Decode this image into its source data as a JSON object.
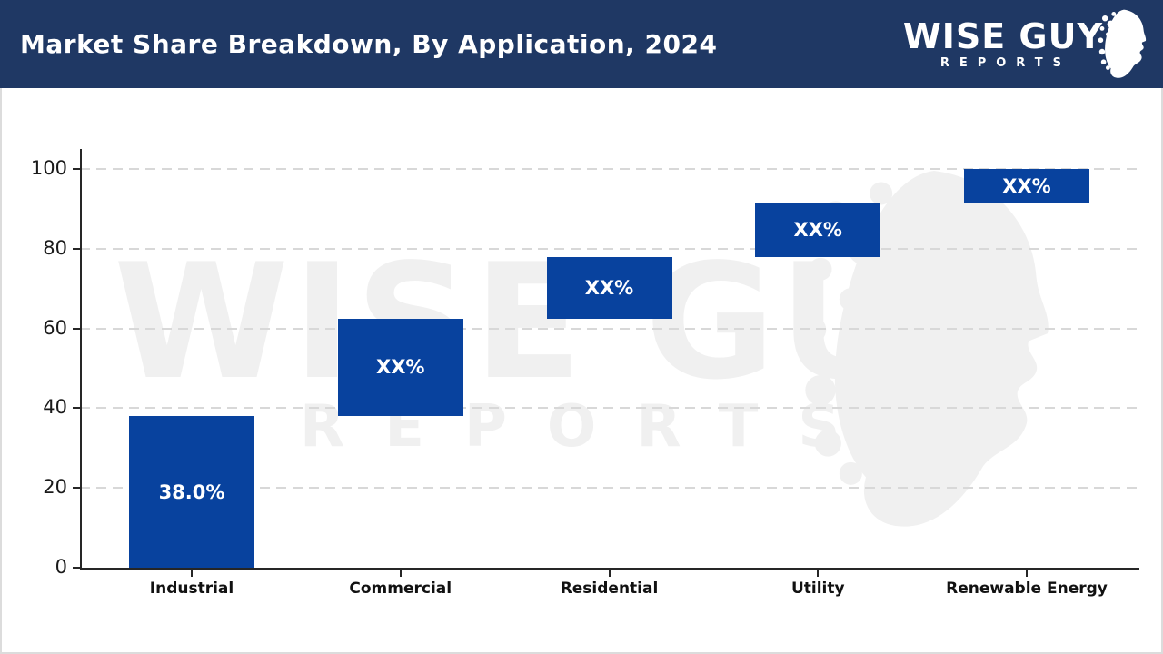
{
  "header": {
    "title": "Market Share Breakdown, By Application, 2024",
    "bg_color": "#1f3864",
    "logo": {
      "line1": "WISE GUY",
      "line2": "REPORTS"
    }
  },
  "watermark": {
    "line1": "WISE GUY",
    "line2": "REPORTS"
  },
  "chart_data": {
    "type": "bar",
    "subtype": "waterfall",
    "title": "Market Share Breakdown, By Application, 2024",
    "xlabel": "",
    "ylabel": "",
    "ylim": [
      0,
      105
    ],
    "yticks": [
      0,
      20,
      40,
      60,
      80,
      100
    ],
    "grid": "horizontal-dashed",
    "legend": "none",
    "bar_color": "#08429e",
    "bar_label_color": "#ffffff",
    "categories": [
      "Industrial",
      "Commercial",
      "Residential",
      "Utility",
      "Renewable Energy"
    ],
    "segments": [
      {
        "category": "Industrial",
        "start": 0,
        "end": 38,
        "value": 38.0,
        "label": "38.0%"
      },
      {
        "category": "Commercial",
        "start": 38,
        "end": 62.5,
        "value": 24.5,
        "label": "XX%"
      },
      {
        "category": "Residential",
        "start": 62.5,
        "end": 78,
        "value": 15.5,
        "label": "XX%"
      },
      {
        "category": "Utility",
        "start": 78,
        "end": 91.5,
        "value": 13.5,
        "label": "XX%"
      },
      {
        "category": "Renewable Energy",
        "start": 91.5,
        "end": 100,
        "value": 8.5,
        "label": "XX%"
      }
    ]
  }
}
